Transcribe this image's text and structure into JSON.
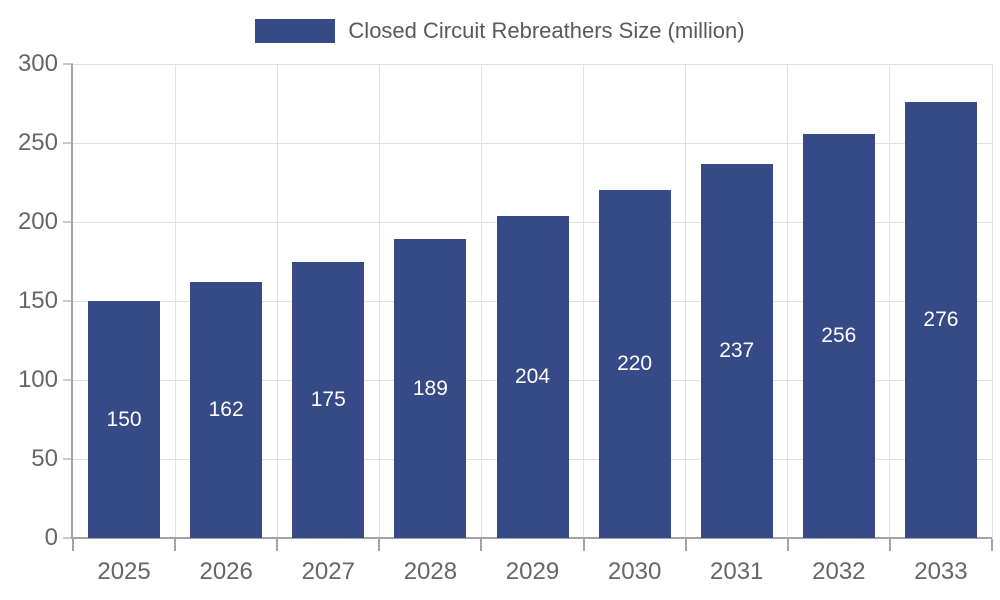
{
  "chart_data": {
    "type": "bar",
    "title": "",
    "series_name": "Closed Circuit Rebreathers Size (million)",
    "categories": [
      "2025",
      "2026",
      "2027",
      "2028",
      "2029",
      "2030",
      "2031",
      "2032",
      "2033"
    ],
    "values": [
      150,
      162,
      175,
      189,
      204,
      220,
      237,
      256,
      276
    ],
    "value_labels": [
      "150",
      "162",
      "175",
      "189",
      "204",
      "220",
      "237",
      "256",
      "276"
    ],
    "xlabel": "",
    "ylabel": "",
    "ylim": [
      0,
      300
    ],
    "yticks": [
      0,
      50,
      100,
      150,
      200,
      250,
      300
    ],
    "ytick_labels": [
      "0",
      "50",
      "100",
      "150",
      "200",
      "250",
      "300"
    ],
    "grid": true,
    "legend_position": "top-center",
    "value_label_position": "inside-center",
    "colors": {
      "bar": "#364A87",
      "value_label": "#FFFFFF",
      "axis_line": "#A3A3A3",
      "x_tick_mark": "#A3A3A3",
      "y_tick_mark": "#C8C8C8",
      "gridline": "#E1E1E1",
      "tick_label": "#666666",
      "legend_text": "#595959",
      "background": "#FFFFFF"
    }
  }
}
